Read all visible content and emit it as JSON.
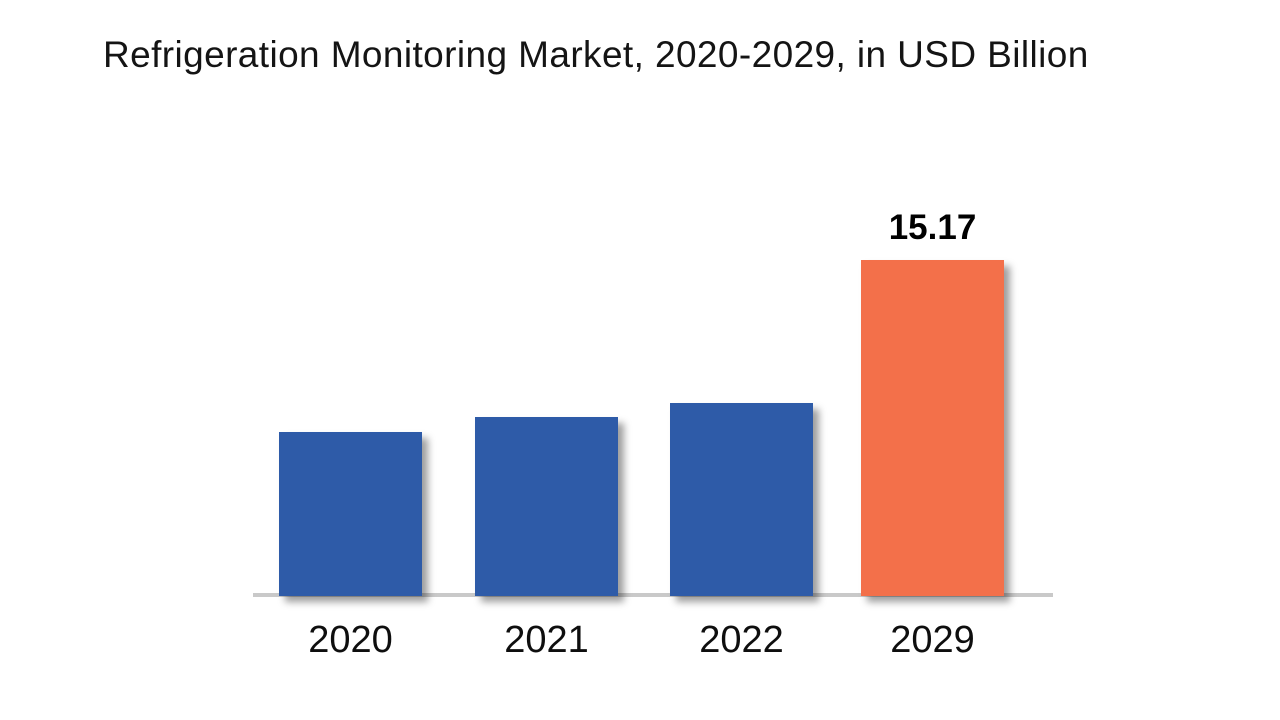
{
  "page": {
    "background": "#ffffff"
  },
  "chart": {
    "title": "Refrigeration Monitoring Market, 2020-2029, in USD Billion"
  },
  "chart_data": {
    "type": "bar",
    "title": "Refrigeration Monitoring Market, 2020-2029, in USD Billion",
    "categories": [
      "2020",
      "2021",
      "2022",
      "2029"
    ],
    "values": [
      7.4,
      8.1,
      8.7,
      15.17
    ],
    "data_labels": [
      "",
      "",
      "",
      "15.17"
    ],
    "bar_colors": [
      "#2E5BA8",
      "#2E5BA8",
      "#2E5BA8",
      "#F3704A"
    ],
    "xlabel": "",
    "ylabel": "",
    "ylim": [
      0,
      16
    ],
    "grid": false,
    "legend": false,
    "y_axis_visible": false,
    "axis_line_color": "#C9C9C9",
    "title_color": "#141414",
    "tick_label_color": "#0E0E0E",
    "data_label_color": "#000000"
  }
}
